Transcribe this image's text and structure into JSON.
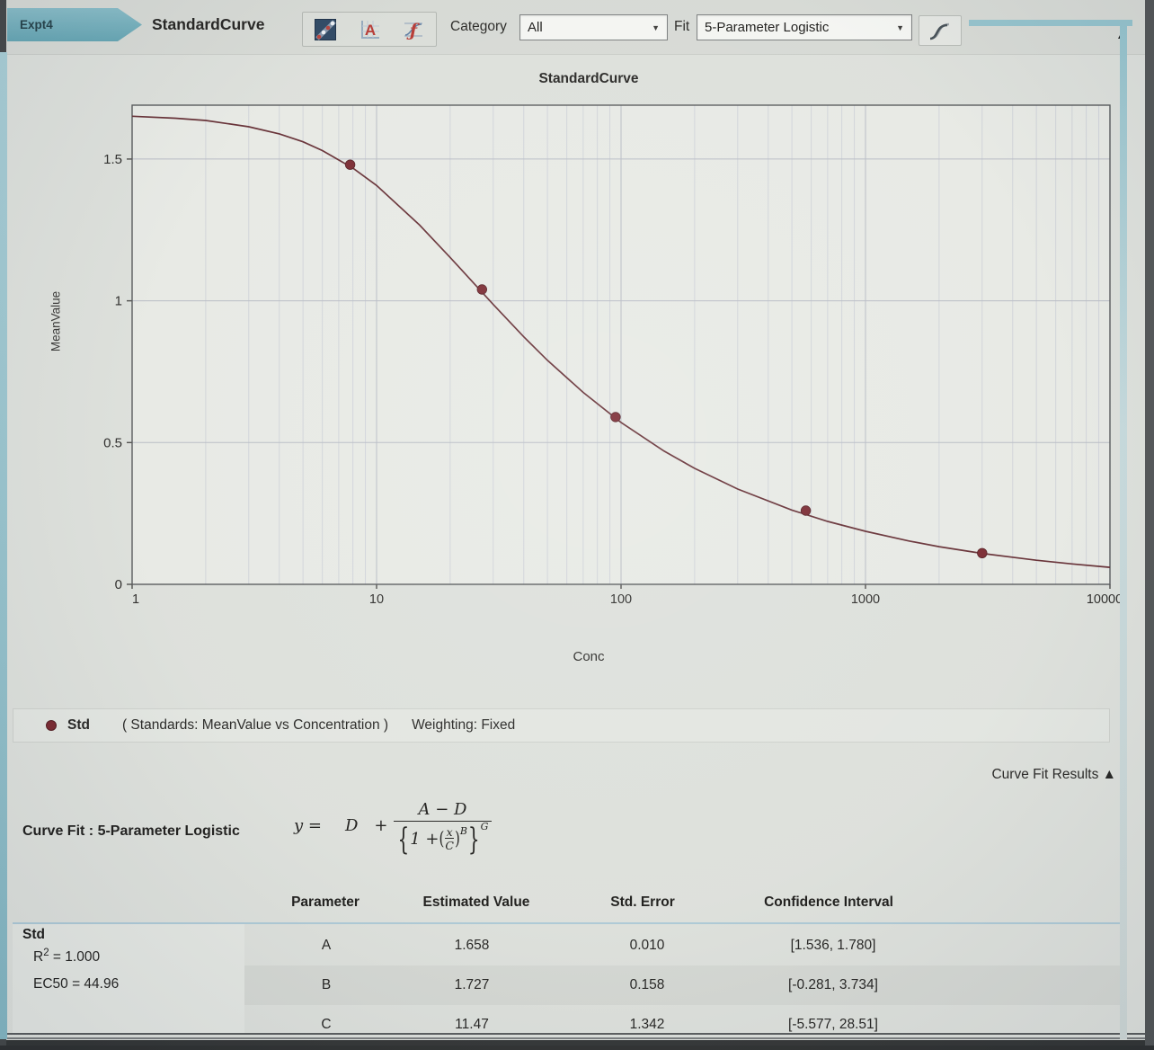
{
  "window": {
    "tab_label": "Expt4",
    "collapse_arrow": "▲"
  },
  "header": {
    "title": "StandardCurve"
  },
  "toolbar": {
    "category_label": "Category",
    "category_value": "All",
    "fit_label": "Fit",
    "fit_value": "5-Parameter Logistic",
    "dropdown_arrow": "▼",
    "icon_glyphs": {
      "axis_letter": "A",
      "function_letter": "ƒ"
    },
    "icons": [
      "scatter-plot-icon",
      "axis-text-icon",
      "fit-function-icon",
      "sigmoid-fit-icon"
    ]
  },
  "chart_data": {
    "type": "scatter",
    "title": "StandardCurve",
    "xlabel": "Conc",
    "ylabel": "MeanValue",
    "x_scale": "log",
    "xlim": [
      1,
      10000
    ],
    "ylim": [
      0,
      1.69
    ],
    "x_ticks": [
      1,
      10,
      100,
      1000,
      10000
    ],
    "y_ticks": [
      0,
      0.5,
      1,
      1.5
    ],
    "grid": true,
    "legend_position": "bottom",
    "series": [
      {
        "name": "Std",
        "color": "#74202a",
        "points": [
          [
            7.8,
            1.48
          ],
          [
            27,
            1.04
          ],
          [
            95,
            0.59
          ],
          [
            570,
            0.26
          ],
          [
            3000,
            0.11
          ]
        ]
      }
    ],
    "fit_curve": {
      "label": "5-Parameter Logistic",
      "color": "#5e262e",
      "samples": [
        [
          1,
          1.651
        ],
        [
          1.5,
          1.644
        ],
        [
          2,
          1.636
        ],
        [
          3,
          1.614
        ],
        [
          4,
          1.589
        ],
        [
          5,
          1.561
        ],
        [
          6,
          1.53
        ],
        [
          8,
          1.468
        ],
        [
          10,
          1.407
        ],
        [
          15,
          1.267
        ],
        [
          20,
          1.153
        ],
        [
          30,
          0.987
        ],
        [
          40,
          0.873
        ],
        [
          50,
          0.79
        ],
        [
          70,
          0.677
        ],
        [
          100,
          0.571
        ],
        [
          150,
          0.47
        ],
        [
          200,
          0.409
        ],
        [
          300,
          0.336
        ],
        [
          500,
          0.262
        ],
        [
          700,
          0.222
        ],
        [
          1000,
          0.187
        ],
        [
          1500,
          0.153
        ],
        [
          2000,
          0.133
        ],
        [
          3000,
          0.109
        ],
        [
          5000,
          0.085
        ],
        [
          7000,
          0.072
        ],
        [
          10000,
          0.06
        ]
      ]
    }
  },
  "legend": {
    "series_name": "Std",
    "description": "( Standards: MeanValue vs Concentration )",
    "weighting": "Weighting: Fixed",
    "marker_color": "#74202a"
  },
  "results": {
    "link_label": "Curve Fit Results",
    "collapse_arrow": "▲",
    "fit_label": "Curve Fit : 5-Parameter Logistic",
    "equation": {
      "lhs": "y =",
      "first_term": "D",
      "operator": "+",
      "numerator": "A − D",
      "open_brace": "{",
      "den_prefix": "1 +",
      "open_paren": "(",
      "inner_num": "x",
      "inner_den": "C",
      "close_paren": ")",
      "exp_inner": "B",
      "close_brace": "}",
      "exp_outer": "G"
    },
    "stats": {
      "group": "Std",
      "r2_base": "R",
      "r2_sup": "2",
      "r2_rest": " = 1.000",
      "ec50": "EC50 = 44.96"
    },
    "table": {
      "headers": [
        "Parameter",
        "Estimated Value",
        "Std. Error",
        "Confidence Interval"
      ],
      "rows": [
        {
          "param": "A",
          "value": "1.658",
          "error": "0.010",
          "ci": "[1.536, 1.780]"
        },
        {
          "param": "B",
          "value": "1.727",
          "error": "0.158",
          "ci": "[-0.281, 3.734]"
        },
        {
          "param": "C",
          "value": "11.47",
          "error": "1.342",
          "ci": "[-5.577, 28.51]"
        }
      ]
    }
  }
}
